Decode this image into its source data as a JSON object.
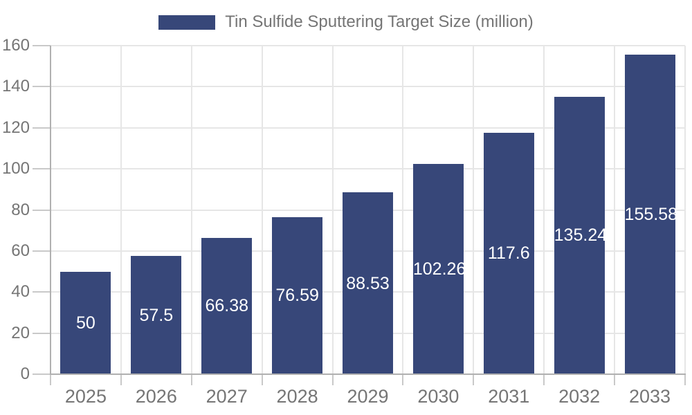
{
  "chart_data": {
    "type": "bar",
    "title": "Tin Sulfide Sputtering Target Size (million)",
    "legend": {
      "position": "top",
      "items": [
        "Tin Sulfide Sputtering Target Size (million)"
      ]
    },
    "categories": [
      "2025",
      "2026",
      "2027",
      "2028",
      "2029",
      "2030",
      "2031",
      "2032",
      "2033"
    ],
    "values": [
      50,
      57.5,
      66.38,
      76.59,
      88.53,
      102.26,
      117.6,
      135.24,
      155.58
    ],
    "value_labels": [
      "50",
      "57.5",
      "66.38",
      "76.59",
      "88.53",
      "102.26",
      "117.6",
      "135.24",
      "155.58"
    ],
    "xlabel": "",
    "ylabel": "",
    "ylim": [
      0,
      160
    ],
    "yticks": [
      0,
      20,
      40,
      60,
      80,
      100,
      120,
      140,
      160
    ],
    "grid": true,
    "colors": {
      "bar": "#374779",
      "value_label": "#ffffff",
      "axis_label": "#757575",
      "axis_line": "#b0b0b0",
      "grid_line": "#e6e6e6",
      "tick_line": "#c9c9c9",
      "background": "#ffffff"
    }
  }
}
